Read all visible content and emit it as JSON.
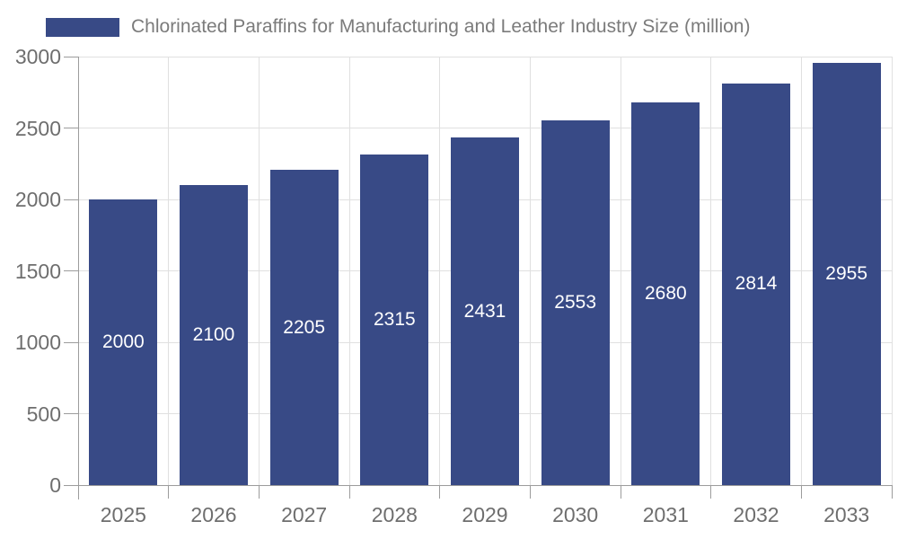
{
  "legend": {
    "label": "Chlorinated Paraffins for Manufacturing and Leather Industry Size (million)"
  },
  "chart_data": {
    "type": "bar",
    "title": "",
    "xlabel": "",
    "ylabel": "",
    "categories": [
      "2025",
      "2026",
      "2027",
      "2028",
      "2029",
      "2030",
      "2031",
      "2032",
      "2033"
    ],
    "values": [
      2000,
      2100,
      2205,
      2315,
      2431,
      2553,
      2680,
      2814,
      2955
    ],
    "series_name": "Chlorinated Paraffins for Manufacturing and Leather Industry Size (million)",
    "ylim": [
      0,
      3000
    ],
    "yticks": [
      0,
      500,
      1000,
      1500,
      2000,
      2500,
      3000
    ],
    "grid": true,
    "legend_position": "top-left",
    "bar_labels_inside": true,
    "colors": {
      "bar": "#384a86",
      "bar_value_label": "#ffffff",
      "gridline": "#e0e0e0",
      "axis": "#9c9c9c",
      "tick_label": "#6e6e6e",
      "legend_text": "#7b7b7b",
      "background": "#ffffff"
    }
  }
}
